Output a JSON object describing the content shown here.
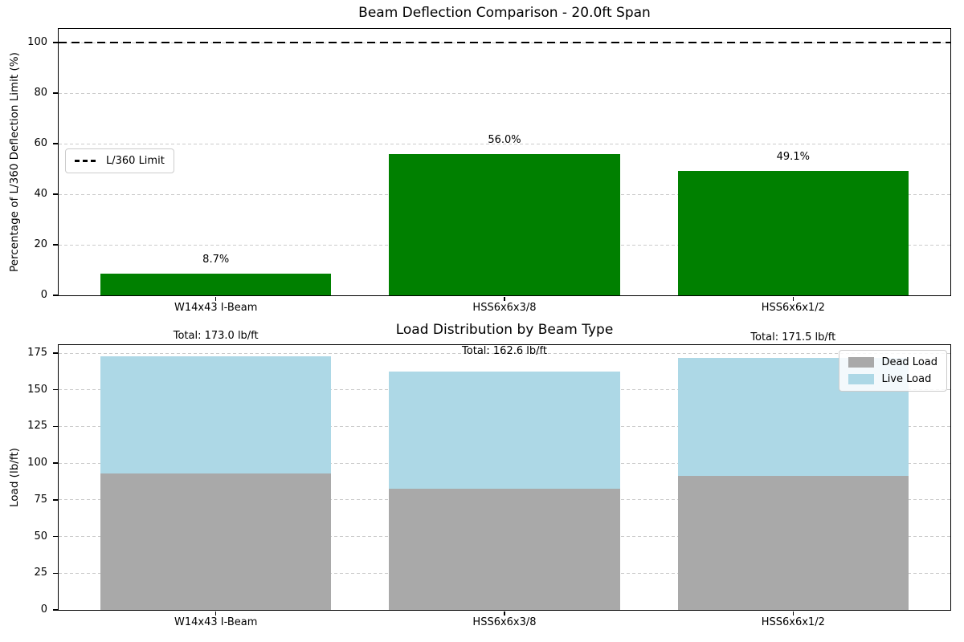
{
  "figure": {
    "background": "#ffffff",
    "grid_color": "#cbcbcb",
    "spine_color": "#000000"
  },
  "chart_data": [
    {
      "type": "bar",
      "title": "Beam Deflection Comparison - 20.0ft Span",
      "ylabel": "Percentage of L/360 Deflection Limit (%)",
      "categories": [
        "W14x43 I-Beam",
        "HSS6x6x3/8",
        "HSS6x6x1/2"
      ],
      "values": [
        8.7,
        56.0,
        49.1
      ],
      "bar_labels": [
        "8.7%",
        "56.0%",
        "49.1%"
      ],
      "bar_color": "#008000",
      "yticks": [
        0,
        20,
        40,
        60,
        80,
        100
      ],
      "ylim": [
        0,
        105.4
      ],
      "grid": true,
      "legend_position": "center-left",
      "limit_line": {
        "value": 100,
        "label": "L/360 Limit",
        "color": "#000000",
        "style": "dashed"
      }
    },
    {
      "type": "stacked-bar",
      "title": "Load Distribution by Beam Type",
      "ylabel": "Load (lb/ft)",
      "categories": [
        "W14x43 I-Beam",
        "HSS6x6x3/8",
        "HSS6x6x1/2"
      ],
      "series": [
        {
          "name": "Dead Load",
          "color": "#a9a9a9",
          "values": [
            93.0,
            82.6,
            91.5
          ]
        },
        {
          "name": "Live Load",
          "color": "#add8e6",
          "values": [
            80.0,
            80.0,
            80.0
          ]
        }
      ],
      "totals": [
        173.0,
        162.6,
        171.5
      ],
      "total_labels": [
        "Total: 173.0 lb/ft",
        "Total: 162.6 lb/ft",
        "Total: 171.5 lb/ft"
      ],
      "yticks": [
        0,
        25,
        50,
        75,
        100,
        125,
        150,
        175
      ],
      "ylim": [
        0,
        180.5
      ],
      "grid": true,
      "legend_position": "top-right"
    }
  ]
}
